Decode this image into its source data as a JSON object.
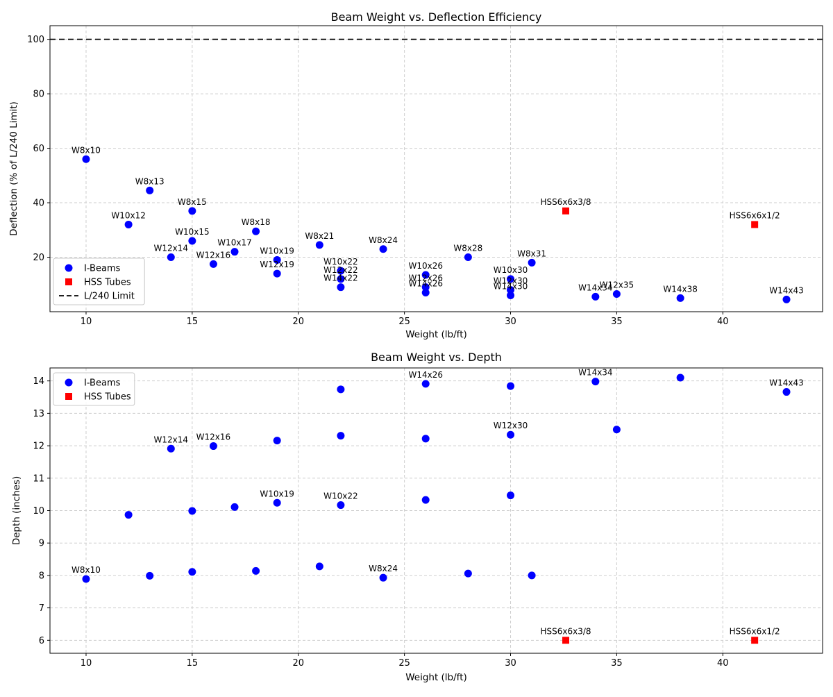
{
  "figure": {
    "background": "#ffffff"
  },
  "colors": {
    "ibeam": "#0000ff",
    "hss": "#ff0000",
    "limit_line": "#000000",
    "grid": "#cdcdcd",
    "spine": "#000000",
    "legend_border": "#c8c8c8"
  },
  "chart_data": [
    {
      "type": "scatter",
      "title": "Beam Weight vs. Deflection Efficiency",
      "xlabel": "Weight (lb/ft)",
      "ylabel": "Deflection (% of L/240 Limit)",
      "xlim": [
        8.3,
        44.7
      ],
      "ylim": [
        0,
        105
      ],
      "xticks": [
        10,
        15,
        20,
        25,
        30,
        35,
        40
      ],
      "yticks": [
        20,
        40,
        60,
        80,
        100
      ],
      "grid": true,
      "legend": {
        "position": "lower-left",
        "entries": [
          "I-Beams",
          "HSS Tubes",
          "L/240 Limit"
        ]
      },
      "hline": {
        "value": 100,
        "label": "L/240 Limit"
      },
      "series": [
        {
          "name": "I-Beams",
          "marker": "circle",
          "color": "#0000ff",
          "points": [
            {
              "label": "W8x10",
              "x": 10,
              "y": 56,
              "labeled": true
            },
            {
              "label": "W10x12",
              "x": 12,
              "y": 32,
              "labeled": true
            },
            {
              "label": "W8x13",
              "x": 13,
              "y": 44.5,
              "labeled": true
            },
            {
              "label": "W12x14",
              "x": 14,
              "y": 20,
              "labeled": true
            },
            {
              "label": "W8x15",
              "x": 15,
              "y": 37,
              "labeled": true
            },
            {
              "label": "W10x15",
              "x": 15,
              "y": 26,
              "labeled": true
            },
            {
              "label": "W12x16",
              "x": 16,
              "y": 17.5,
              "labeled": true
            },
            {
              "label": "W10x17",
              "x": 17,
              "y": 22,
              "labeled": true
            },
            {
              "label": "W8x18",
              "x": 18,
              "y": 29.5,
              "labeled": true
            },
            {
              "label": "W10x19",
              "x": 19,
              "y": 19,
              "labeled": true
            },
            {
              "label": "W12x19",
              "x": 19,
              "y": 14,
              "labeled": true
            },
            {
              "label": "W8x21",
              "x": 21,
              "y": 24.5,
              "labeled": true
            },
            {
              "label": "W10x22",
              "x": 22,
              "y": 15,
              "labeled": true
            },
            {
              "label": "W12x22",
              "x": 22,
              "y": 12,
              "labeled": true
            },
            {
              "label": "W14x22",
              "x": 22,
              "y": 9,
              "labeled": true
            },
            {
              "label": "W8x24",
              "x": 24,
              "y": 23,
              "labeled": true
            },
            {
              "label": "W10x26",
              "x": 26,
              "y": 13.5,
              "labeled": true
            },
            {
              "label": "W12x26",
              "x": 26,
              "y": 9,
              "labeled": true
            },
            {
              "label": "W14x26",
              "x": 26,
              "y": 7,
              "labeled": true
            },
            {
              "label": "W8x28",
              "x": 28,
              "y": 20,
              "labeled": true
            },
            {
              "label": "W10x30",
              "x": 30,
              "y": 12,
              "labeled": true
            },
            {
              "label": "W12x30",
              "x": 30,
              "y": 8,
              "labeled": true
            },
            {
              "label": "W14x30",
              "x": 30,
              "y": 6,
              "labeled": true
            },
            {
              "label": "W8x31",
              "x": 31,
              "y": 18,
              "labeled": true
            },
            {
              "label": "W14x34",
              "x": 34,
              "y": 5.5,
              "labeled": true
            },
            {
              "label": "W12x35",
              "x": 35,
              "y": 6.5,
              "labeled": true
            },
            {
              "label": "W14x38",
              "x": 38,
              "y": 5,
              "labeled": true
            },
            {
              "label": "W14x43",
              "x": 43,
              "y": 4.5,
              "labeled": true
            }
          ]
        },
        {
          "name": "HSS Tubes",
          "marker": "square",
          "color": "#ff0000",
          "points": [
            {
              "label": "HSS6x6x3/8",
              "x": 32.6,
              "y": 37,
              "labeled": true
            },
            {
              "label": "HSS6x6x1/2",
              "x": 41.5,
              "y": 32,
              "labeled": true
            }
          ]
        }
      ]
    },
    {
      "type": "scatter",
      "title": "Beam Weight vs. Depth",
      "xlabel": "Weight (lb/ft)",
      "ylabel": "Depth (inches)",
      "xlim": [
        8.3,
        44.7
      ],
      "ylim": [
        5.6,
        14.4
      ],
      "xticks": [
        10,
        15,
        20,
        25,
        30,
        35,
        40
      ],
      "yticks": [
        6,
        7,
        8,
        9,
        10,
        11,
        12,
        13,
        14
      ],
      "grid": true,
      "legend": {
        "position": "upper-left",
        "entries": [
          "I-Beams",
          "HSS Tubes"
        ]
      },
      "series": [
        {
          "name": "I-Beams",
          "marker": "circle",
          "color": "#0000ff",
          "points": [
            {
              "label": "W8x10",
              "x": 10,
              "y": 7.89,
              "labeled": true
            },
            {
              "label": "W10x12",
              "x": 12,
              "y": 9.87,
              "labeled": false
            },
            {
              "label": "W8x13",
              "x": 13,
              "y": 7.99,
              "labeled": false
            },
            {
              "label": "W12x14",
              "x": 14,
              "y": 11.91,
              "labeled": true
            },
            {
              "label": "W8x15",
              "x": 15,
              "y": 8.11,
              "labeled": false
            },
            {
              "label": "W10x15",
              "x": 15,
              "y": 9.99,
              "labeled": false
            },
            {
              "label": "W12x16",
              "x": 16,
              "y": 11.99,
              "labeled": true
            },
            {
              "label": "W10x17",
              "x": 17,
              "y": 10.11,
              "labeled": false
            },
            {
              "label": "W8x18",
              "x": 18,
              "y": 8.14,
              "labeled": false
            },
            {
              "label": "W10x19",
              "x": 19,
              "y": 10.24,
              "labeled": true
            },
            {
              "label": "W12x19",
              "x": 19,
              "y": 12.16,
              "labeled": false
            },
            {
              "label": "W8x21",
              "x": 21,
              "y": 8.28,
              "labeled": false
            },
            {
              "label": "W10x22",
              "x": 22,
              "y": 10.17,
              "labeled": true
            },
            {
              "label": "W12x22",
              "x": 22,
              "y": 12.31,
              "labeled": false
            },
            {
              "label": "W14x22",
              "x": 22,
              "y": 13.74,
              "labeled": false
            },
            {
              "label": "W8x24",
              "x": 24,
              "y": 7.93,
              "labeled": true
            },
            {
              "label": "W10x26",
              "x": 26,
              "y": 10.33,
              "labeled": false
            },
            {
              "label": "W12x26",
              "x": 26,
              "y": 12.22,
              "labeled": false
            },
            {
              "label": "W14x26",
              "x": 26,
              "y": 13.91,
              "labeled": true
            },
            {
              "label": "W8x28",
              "x": 28,
              "y": 8.06,
              "labeled": false
            },
            {
              "label": "W10x30",
              "x": 30,
              "y": 10.47,
              "labeled": false
            },
            {
              "label": "W12x30",
              "x": 30,
              "y": 12.34,
              "labeled": true
            },
            {
              "label": "W14x30",
              "x": 30,
              "y": 13.84,
              "labeled": false
            },
            {
              "label": "W8x31",
              "x": 31,
              "y": 8.0,
              "labeled": false
            },
            {
              "label": "W14x34",
              "x": 34,
              "y": 13.98,
              "labeled": true
            },
            {
              "label": "W12x35",
              "x": 35,
              "y": 12.5,
              "labeled": false
            },
            {
              "label": "W14x38",
              "x": 38,
              "y": 14.1,
              "labeled": false
            },
            {
              "label": "W14x43",
              "x": 43,
              "y": 13.66,
              "labeled": true
            }
          ]
        },
        {
          "name": "HSS Tubes",
          "marker": "square",
          "color": "#ff0000",
          "points": [
            {
              "label": "HSS6x6x3/8",
              "x": 32.6,
              "y": 6.0,
              "labeled": true
            },
            {
              "label": "HSS6x6x1/2",
              "x": 41.5,
              "y": 6.0,
              "labeled": true
            }
          ]
        }
      ]
    }
  ]
}
